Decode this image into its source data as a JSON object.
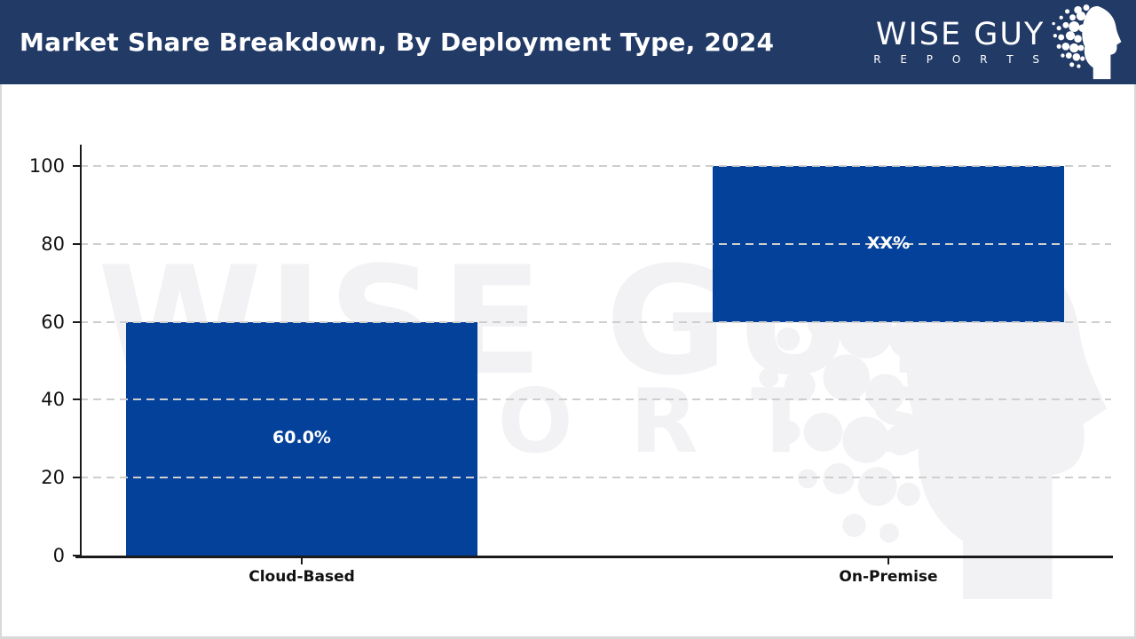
{
  "header": {
    "title": "Market Share Breakdown, By Deployment Type, 2024",
    "logo": {
      "name": "WISE GUY",
      "sub": "R E P O R T S"
    }
  },
  "watermark": {
    "big": "WISE GUY",
    "sub": "REPORTS"
  },
  "chart_data": {
    "type": "bar",
    "title": "Market Share Breakdown, By Deployment Type, 2024",
    "categories": [
      "Cloud-Based",
      "On-Premise"
    ],
    "bars": [
      {
        "category": "Cloud-Based",
        "start": 0,
        "end": 60,
        "label": "60.0%"
      },
      {
        "category": "On-Premise",
        "start": 60,
        "end": 100,
        "label": "XX%"
      }
    ],
    "values": [
      60,
      40
    ],
    "yticks": [
      0,
      20,
      40,
      60,
      80,
      100
    ],
    "ylim": [
      0,
      105
    ],
    "grid": "horizontal-dashed",
    "legend": "none",
    "bar_color": "#04419b"
  },
  "colors": {
    "header_bg": "#223a66",
    "bar": "#04419b",
    "gridline": "#cecece",
    "axis": "#1a1a1a",
    "watermark": "#f2f2f4",
    "page_border": "#d9d9d9",
    "title_text": "#ffffff",
    "bar_label_text": "#ffffff"
  }
}
